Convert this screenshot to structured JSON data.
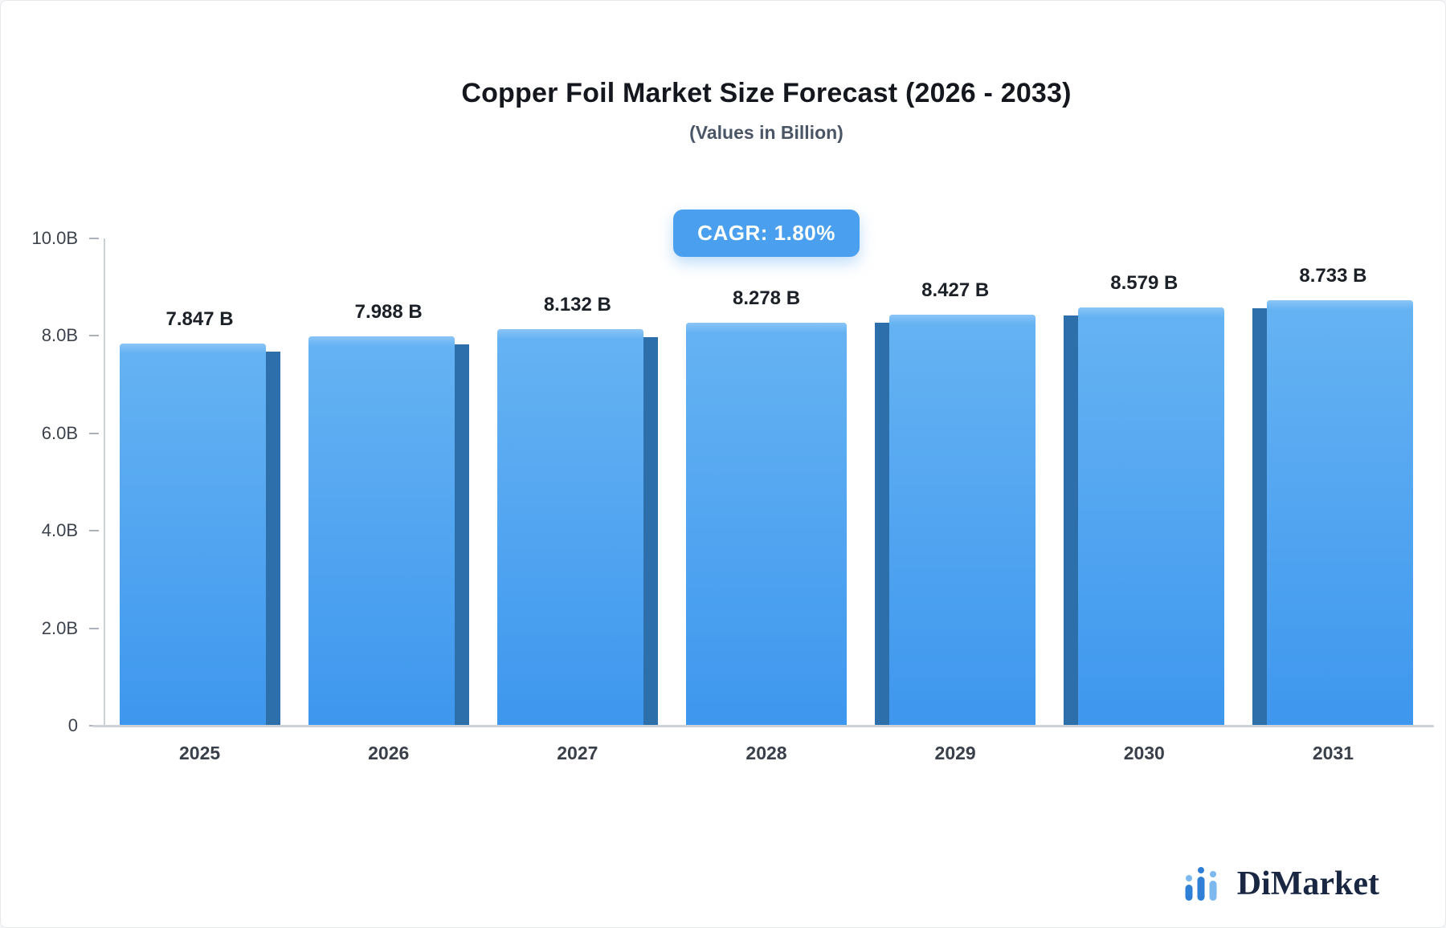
{
  "header": {
    "title": "Copper Foil Market Size Forecast (2026 - 2033)",
    "subtitle": "(Values in Billion)"
  },
  "cagr_badge": {
    "label": "CAGR: 1.80%",
    "background": "#4aa0ee",
    "text_color": "#ffffff"
  },
  "chart_data": {
    "type": "bar",
    "title": "Copper Foil Market Size Forecast (2026 - 2033)",
    "subtitle": "(Values in Billion)",
    "unit": "Billion",
    "categories": [
      "2025",
      "2026",
      "2027",
      "2028",
      "2029",
      "2030",
      "2031"
    ],
    "values": [
      7.847,
      7.988,
      8.132,
      8.278,
      8.427,
      8.579,
      8.733
    ],
    "bar_labels": [
      "7.847 B",
      "7.988 B",
      "8.132 B",
      "8.278 B",
      "8.427 B",
      "8.579 B",
      "8.733 B"
    ],
    "ylim": [
      0,
      10
    ],
    "yticks": [
      {
        "value": 0,
        "label": "0"
      },
      {
        "value": 2,
        "label": "2.0B"
      },
      {
        "value": 4,
        "label": "4.0B"
      },
      {
        "value": 6,
        "label": "6.0B"
      },
      {
        "value": 8,
        "label": "8.0B"
      },
      {
        "value": 10,
        "label": "10.0B"
      }
    ],
    "grid": false,
    "legend": false,
    "bar_style": {
      "body_top": "#66b3f3",
      "body_bottom": "#3e97ee",
      "cap": "#8ac5f7",
      "side": "#2d6fab",
      "sides": [
        "right",
        "right",
        "right",
        "none",
        "left",
        "left",
        "left"
      ]
    }
  },
  "branding": {
    "name": "DiMarket",
    "icon": "dimarket-bars-logo-icon"
  }
}
